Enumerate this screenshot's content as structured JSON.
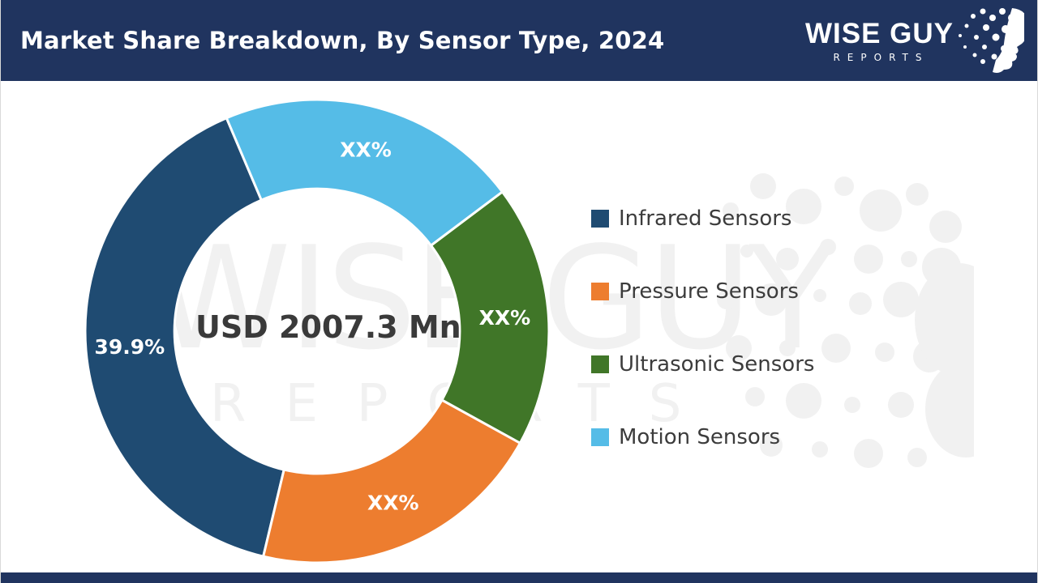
{
  "header": {
    "title": "Market Share Breakdown, By Sensor Type, 2024",
    "background": "#20345f",
    "logo": {
      "line1": "WISE GUY",
      "line2": "REPORTS"
    }
  },
  "watermark": {
    "line1": "WISE GUY",
    "line2": "REPORTS"
  },
  "footer": {
    "background": "#20345f"
  },
  "chart_data": {
    "type": "pie",
    "donut": true,
    "title": "Market Share Breakdown, By Sensor Type, 2024",
    "center_label": "USD 2007.3 Mn",
    "legend_position": "right",
    "start_angle_deg": 113,
    "direction": "ccw",
    "inner_radius_ratio": 0.615,
    "separator_color": "#ffffff",
    "slices": [
      {
        "name": "Infrared Sensors",
        "label": "39.9%",
        "sweep_deg": 143.6,
        "color": "#1f4b72"
      },
      {
        "name": "Pressure Sensors",
        "label": "XX%",
        "sweep_deg": 74.5,
        "color": "#ed7d2f"
      },
      {
        "name": "Ultrasonic Sensors",
        "label": "XX%",
        "sweep_deg": 65.9,
        "color": "#407628"
      },
      {
        "name": "Motion Sensors",
        "label": "XX%",
        "sweep_deg": 76.0,
        "color": "#55bce7"
      }
    ]
  }
}
